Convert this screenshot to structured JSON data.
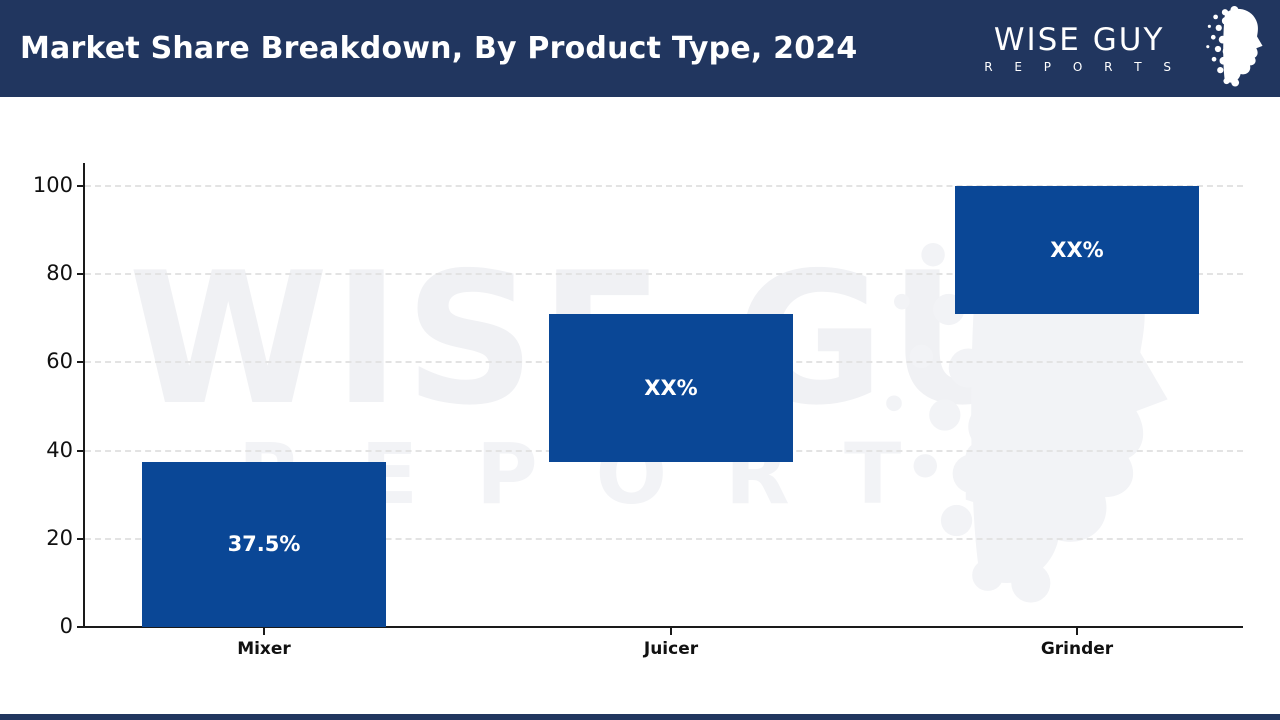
{
  "header": {
    "title": "Market Share Breakdown, By Product Type, 2024",
    "logo": {
      "line1": "WISE GUY",
      "line2": "R E P O R T S"
    }
  },
  "watermark": {
    "line1": "WISE GUY",
    "line2": "REPORTS"
  },
  "colors": {
    "header_bg": "#21365F",
    "footer_bg": "#21365F",
    "bar": "#0A4796",
    "gridline": "#E3E3E3",
    "axis": "#1A1A1A",
    "bar_label": "#FFFFFF",
    "watermark": "#F0F1F4"
  },
  "chart_data": {
    "type": "bar",
    "subtype": "waterfall",
    "title": "Market Share Breakdown, By Product Type, 2024",
    "categories": [
      "Mixer",
      "Juicer",
      "Grinder"
    ],
    "segments": [
      {
        "category": "Mixer",
        "start": 0,
        "end": 37.5,
        "label": "37.5%"
      },
      {
        "category": "Juicer",
        "start": 37.5,
        "end": 71,
        "label": "XX%"
      },
      {
        "category": "Grinder",
        "start": 71,
        "end": 100,
        "label": "XX%"
      }
    ],
    "xlabel": "",
    "ylabel": "",
    "ylim": [
      0,
      100
    ],
    "yticks": [
      0,
      20,
      40,
      60,
      80,
      100
    ],
    "grid": "horizontal-dashed",
    "legend": "none"
  }
}
